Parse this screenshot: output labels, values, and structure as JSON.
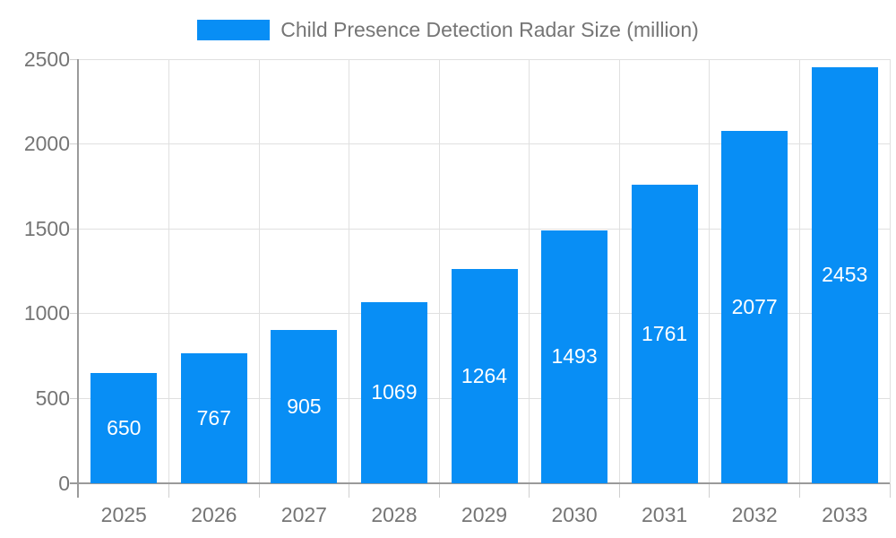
{
  "colors": {
    "bar": "#088ef5",
    "grid": "#e0e0e0",
    "tick": "#d0d0d0",
    "axis": "#9a9a9a",
    "text": "#757575",
    "value_label": "#ffffff",
    "background": "#ffffff"
  },
  "chart_data": {
    "type": "bar",
    "title": "Child Presence Detection Radar Size (million)",
    "categories": [
      "2025",
      "2026",
      "2027",
      "2028",
      "2029",
      "2030",
      "2031",
      "2032",
      "2033"
    ],
    "values": [
      650,
      767,
      905,
      1069,
      1264,
      1493,
      1761,
      2077,
      2453
    ],
    "xlabel": "",
    "ylabel": "",
    "ylim": [
      0,
      2500
    ],
    "yticks": [
      0,
      500,
      1000,
      1500,
      2000,
      2500
    ],
    "grid": true,
    "legend_position": "top",
    "value_labels_position": "inside-center"
  }
}
